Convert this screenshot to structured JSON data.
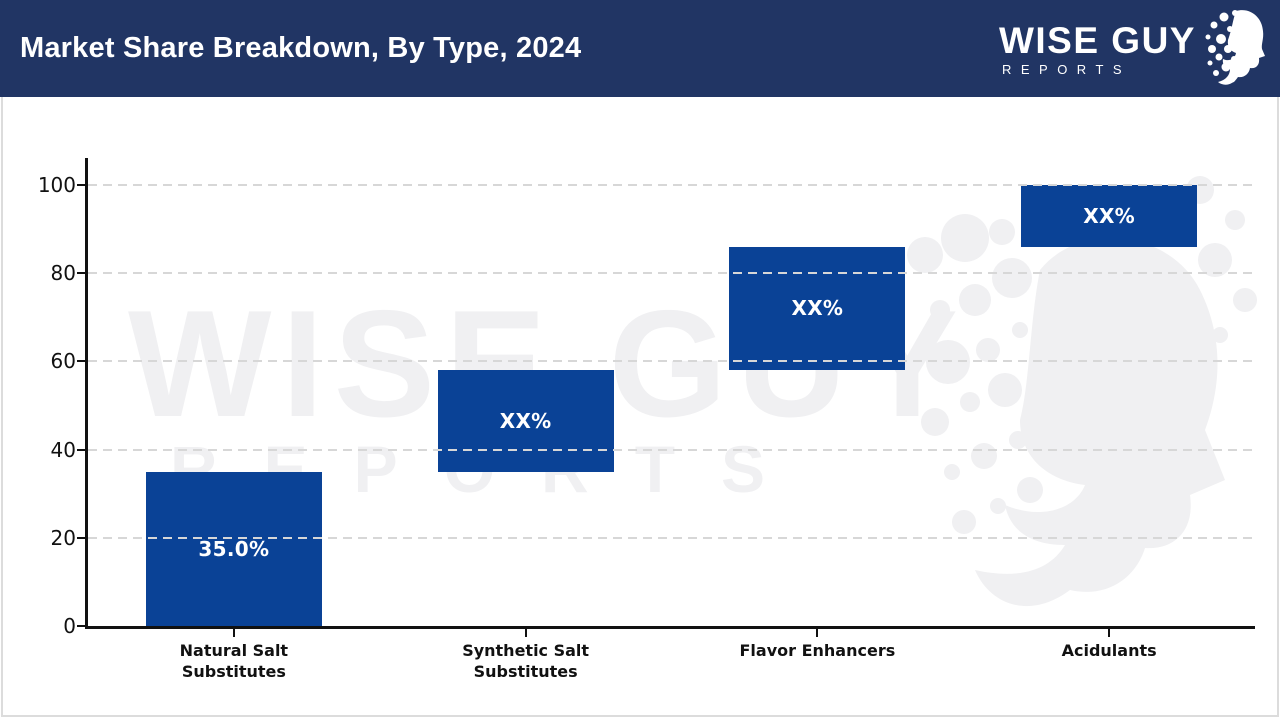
{
  "header": {
    "title": "Market Share Breakdown, By Type, 2024",
    "logo": {
      "line1": "WISE GUY",
      "line2": "REPORTS"
    }
  },
  "watermark": {
    "line1": "WISE GUY",
    "line2": "REPORTS"
  },
  "colors": {
    "header_bg": "#213564",
    "bar": "#0A4296",
    "bar_label": "#FFFFFF",
    "grid": "#D7D7D7",
    "axis": "#111111",
    "watermark": "#F0F0F2",
    "title_text": "#FFFFFF"
  },
  "chart_data": {
    "type": "bar",
    "subtype": "waterfall",
    "title": "Market Share Breakdown, By Type, 2024",
    "categories": [
      "Natural Salt\nSubstitutes",
      "Synthetic Salt\nSubstitutes",
      "Flavor Enhancers",
      "Acidulants"
    ],
    "segments": [
      {
        "category": "Natural Salt Substitutes",
        "start": 0,
        "end": 35,
        "value": 35,
        "label": "35.0%"
      },
      {
        "category": "Synthetic Salt Substitutes",
        "start": 35,
        "end": 58,
        "value": 23,
        "label": "XX%"
      },
      {
        "category": "Flavor Enhancers",
        "start": 58,
        "end": 86,
        "value": 28,
        "label": "XX%"
      },
      {
        "category": "Acidulants",
        "start": 86,
        "end": 100,
        "value": 14,
        "label": "XX%"
      }
    ],
    "yticks": [
      0,
      20,
      40,
      60,
      80,
      100
    ],
    "ylim": [
      0,
      107
    ],
    "xlabel": "",
    "ylabel": "",
    "grid": "dashed-horizontal",
    "legend": "none"
  }
}
